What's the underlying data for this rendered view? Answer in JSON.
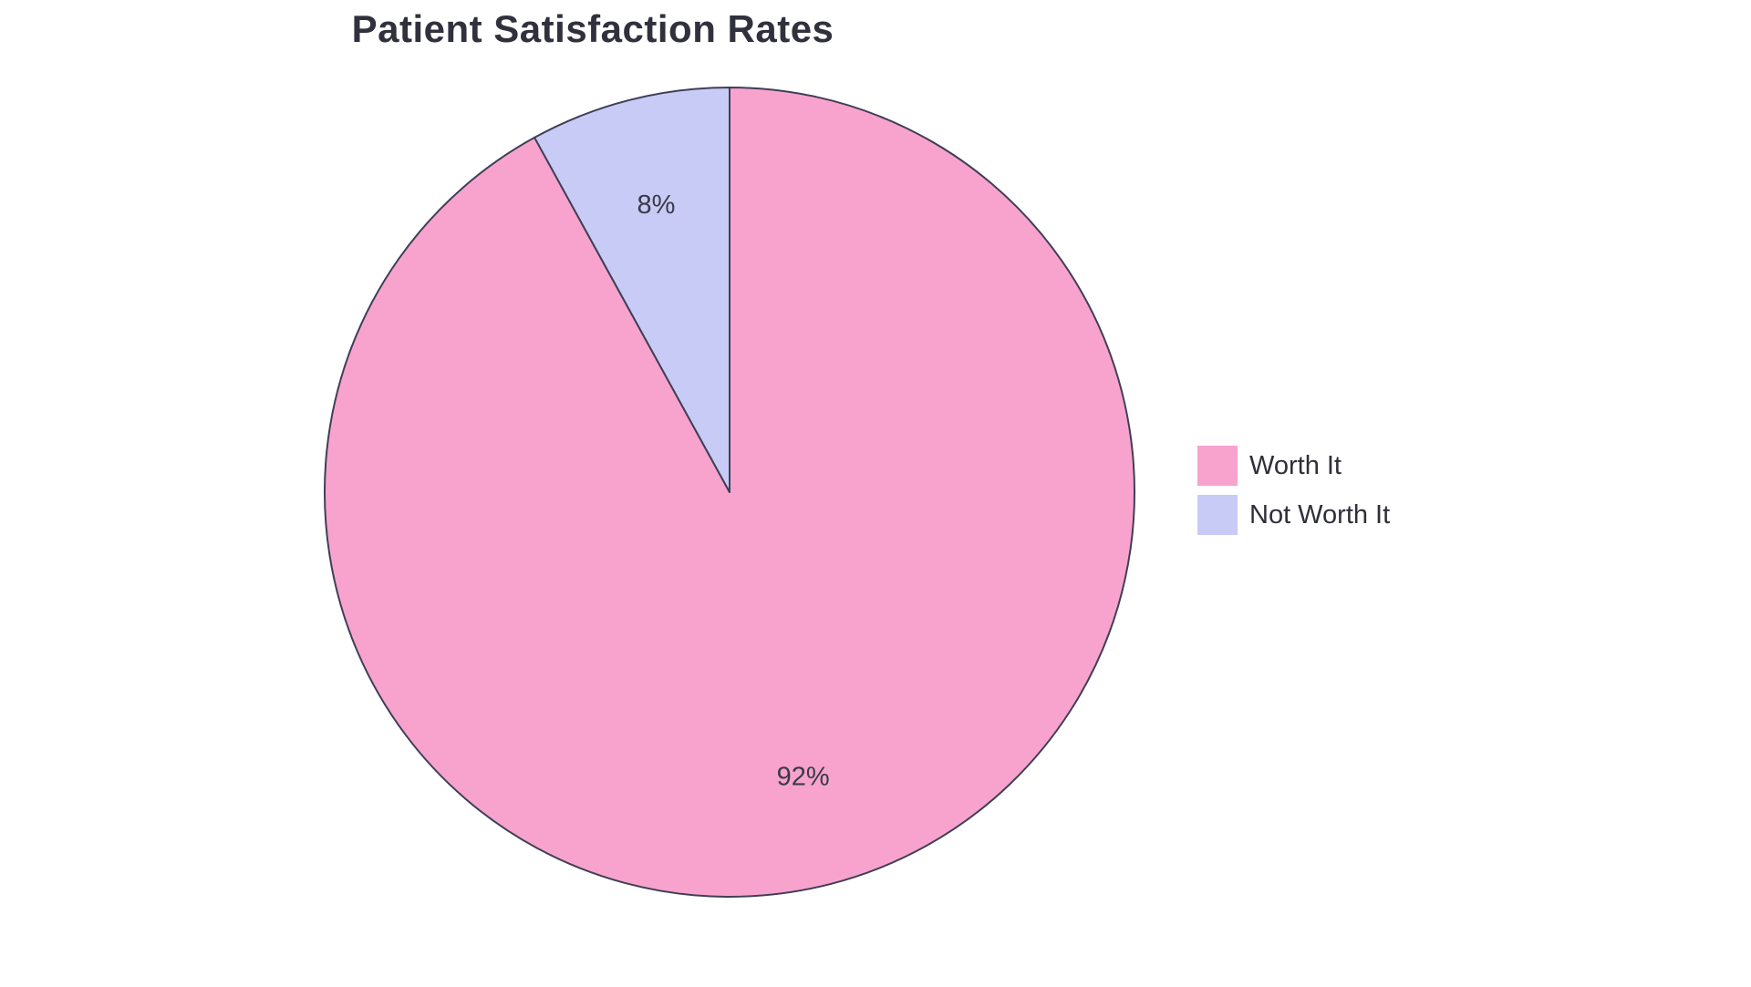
{
  "title": "Patient Satisfaction Rates",
  "chart_data": {
    "type": "pie",
    "title": "Patient Satisfaction Rates",
    "labels": [
      "Worth It",
      "Not Worth It"
    ],
    "values": [
      92,
      8
    ],
    "data_labels": [
      "92%",
      "8%"
    ],
    "colors": [
      "#f8a3ce",
      "#c8cbf5"
    ],
    "stroke_color": "#3f3f56",
    "stroke_width": 2,
    "start_angle_deg": 0,
    "direction": "clockwise",
    "legend_position": "right",
    "background": "#ffffff"
  },
  "legend": {
    "items": [
      {
        "label": "Worth It",
        "color": "#f8a3ce"
      },
      {
        "label": "Not Worth It",
        "color": "#c8cbf5"
      }
    ]
  }
}
